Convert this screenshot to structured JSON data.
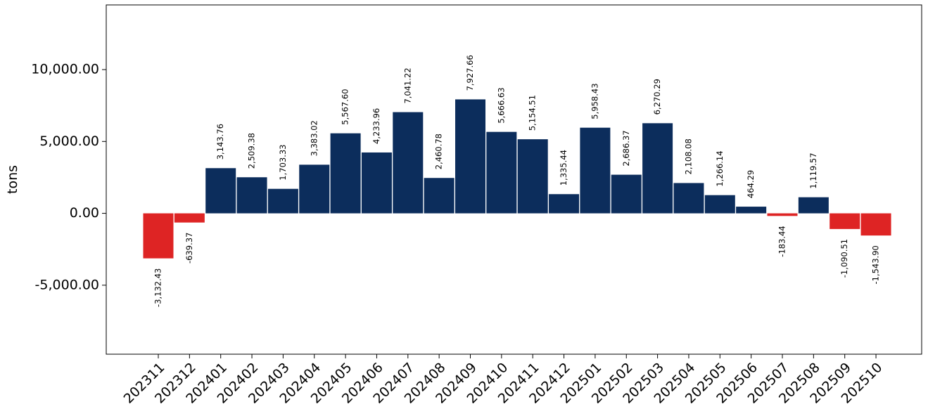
{
  "chart_data": {
    "type": "bar",
    "title": "",
    "xlabel": "",
    "ylabel": "tons",
    "ylim": [
      -9800,
      14500
    ],
    "yticks": [
      -5000,
      0,
      5000,
      10000
    ],
    "ytick_labels": [
      "-5,000.00",
      "0.00",
      "5,000.00",
      "10,000.00"
    ],
    "grid": false,
    "colors": {
      "positive": "#0c2d5c",
      "negative": "#de2424"
    },
    "categories": [
      "202311",
      "202312",
      "202401",
      "202402",
      "202403",
      "202404",
      "202405",
      "202406",
      "202407",
      "202408",
      "202409",
      "202410",
      "202411",
      "202412",
      "202501",
      "202502",
      "202503",
      "202504",
      "202505",
      "202506",
      "202507",
      "202508",
      "202509",
      "202510"
    ],
    "values": [
      -3132.43,
      -639.37,
      3143.76,
      2509.38,
      1703.33,
      3383.02,
      5567.6,
      4233.96,
      7041.22,
      2460.78,
      7927.66,
      5666.63,
      5154.51,
      1335.44,
      5958.43,
      2686.37,
      6270.29,
      2108.08,
      1266.14,
      464.29,
      -183.44,
      1119.57,
      -1090.51,
      -1543.9
    ],
    "data_labels": [
      "-3,132.43",
      "-639.37",
      "3,143.76",
      "2,509.38",
      "1,703.33",
      "3,383.02",
      "5,567.60",
      "4,233.96",
      "7,041.22",
      "2,460.78",
      "7,927.66",
      "5,666.63",
      "5,154.51",
      "1,335.44",
      "5,958.43",
      "2,686.37",
      "6,270.29",
      "2,108.08",
      "1,266.14",
      "464.29",
      "-183.44",
      "1,119.57",
      "-1,090.51",
      "-1,543.90"
    ]
  }
}
